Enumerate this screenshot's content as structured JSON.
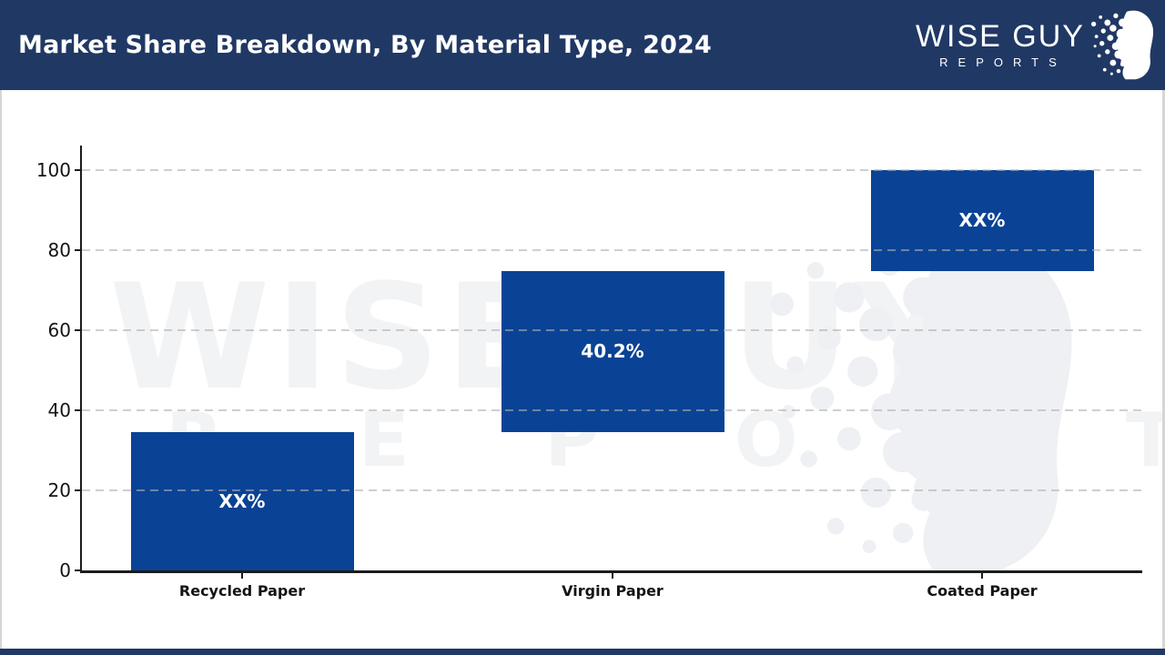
{
  "header": {
    "title": "Market Share Breakdown, By Material Type, 2024",
    "logo_line1": "WISE GUY",
    "logo_line2": "REPORTS",
    "bg_color": "#203864"
  },
  "watermark": {
    "line1": "WISE GUY",
    "line2": "R E P O R T S"
  },
  "chart_data": {
    "type": "bar",
    "subtype": "waterfall-floating-bars",
    "title": "Market Share Breakdown, By Material Type, 2024",
    "categories": [
      "Recycled Paper",
      "Virgin Paper",
      "Coated Paper"
    ],
    "segments": [
      {
        "category": "Recycled Paper",
        "start": 0,
        "end": 34.6,
        "value_label": "XX%"
      },
      {
        "category": "Virgin Paper",
        "start": 34.6,
        "end": 74.8,
        "value_label": "40.2%"
      },
      {
        "category": "Coated Paper",
        "start": 74.8,
        "end": 100,
        "value_label": "XX%"
      }
    ],
    "y_ticks": [
      0,
      20,
      40,
      60,
      80,
      100
    ],
    "ylim": [
      0,
      106
    ],
    "xlabel": "",
    "ylabel": "",
    "grid": "horizontal-dashed",
    "legend": "none",
    "bar_color": "#0a4396",
    "label_color": "#ffffff"
  }
}
